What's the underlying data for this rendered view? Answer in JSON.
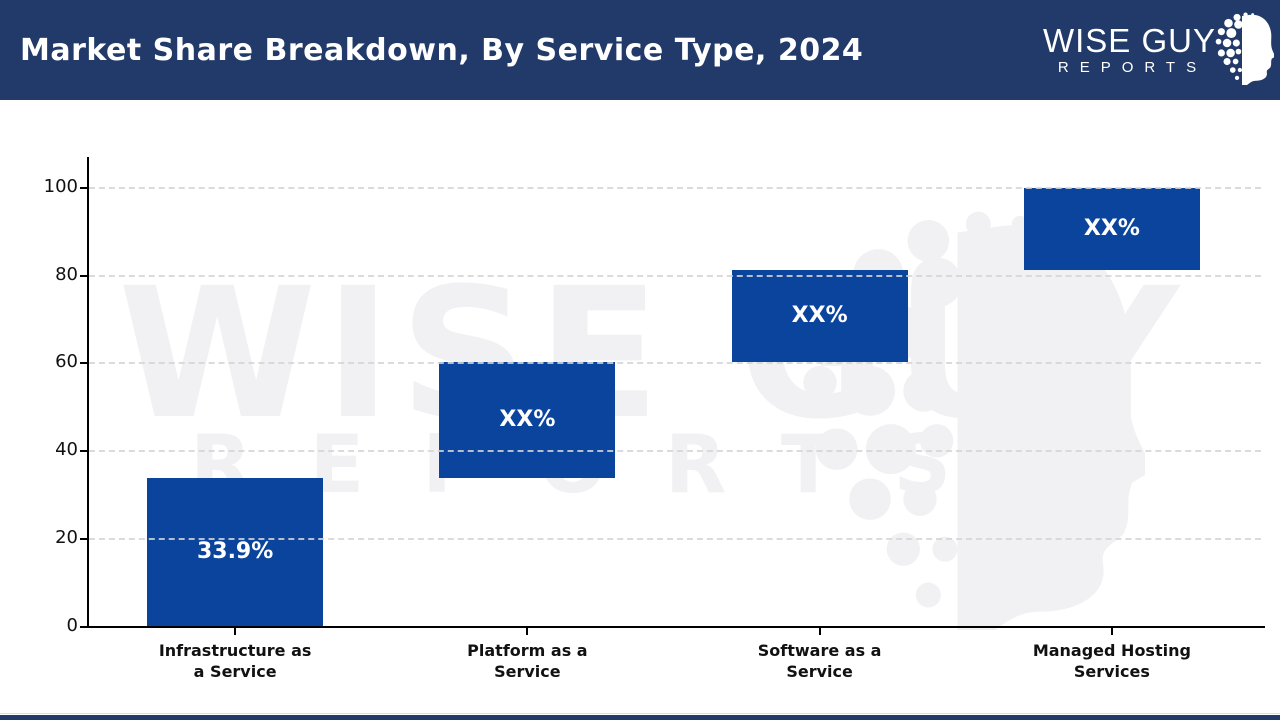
{
  "header": {
    "title": "Market Share Breakdown, By Service Type, 2024",
    "logo": {
      "brand": "WISE GUY",
      "sub": "REPORTS"
    }
  },
  "watermark": {
    "brand": "WISE GUY",
    "sub": "REPORTS"
  },
  "colors": {
    "header_bg": "#213A69",
    "footer_bg": "#213A69",
    "bar": "#0B449C",
    "grid": "#D5D5D5",
    "axis": "#000000",
    "bar_label_text": "#FFFFFF",
    "watermark": "#F1F1F4"
  },
  "chart_data": {
    "type": "bar",
    "subtype": "waterfall",
    "title": "Market Share Breakdown, By Service Type, 2024",
    "xlabel": "",
    "ylabel": "",
    "categories": [
      "Infrastructure as a Service",
      "Platform as a Service",
      "Software as a Service",
      "Managed Hosting Services"
    ],
    "category_lines": [
      [
        "Infrastructure as",
        "a Service"
      ],
      [
        "Platform as a",
        "Service"
      ],
      [
        "Software as a",
        "Service"
      ],
      [
        "Managed Hosting",
        "Services"
      ]
    ],
    "segments": [
      {
        "category": "Infrastructure as a Service",
        "start": 0,
        "end": 33.9,
        "label": "33.9%"
      },
      {
        "category": "Platform as a Service",
        "start": 33.9,
        "end": 60.3,
        "label": "XX%"
      },
      {
        "category": "Software as a Service",
        "start": 60.4,
        "end": 81.2,
        "label": "XX%"
      },
      {
        "category": "Managed Hosting Services",
        "start": 81.2,
        "end": 100.0,
        "label": "XX%"
      }
    ],
    "y_ticks": [
      "0",
      "20",
      "40",
      "60",
      "80",
      "100"
    ],
    "ylim": [
      0,
      107
    ],
    "bar_color": "#0B449C",
    "grid": "dashed-horizontal",
    "legend": false
  }
}
